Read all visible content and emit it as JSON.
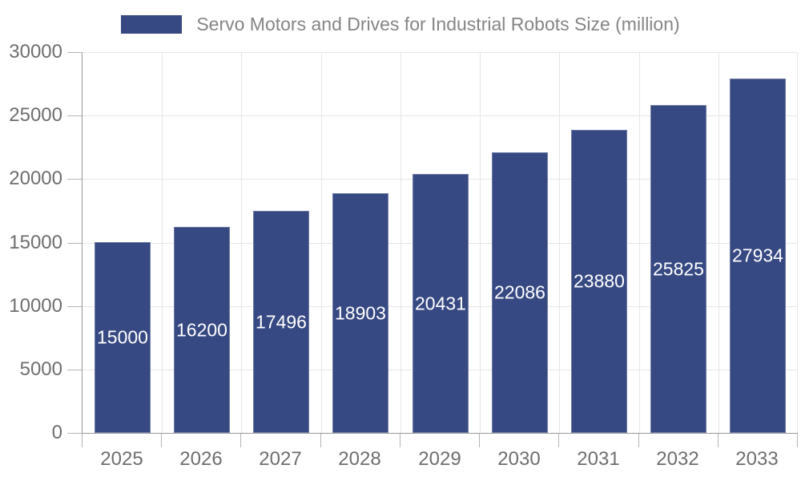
{
  "chart_data": {
    "type": "bar",
    "title": "Servo Motors and Drives for Industrial Robots Size (million)",
    "categories": [
      "2025",
      "2026",
      "2027",
      "2028",
      "2029",
      "2030",
      "2031",
      "2032",
      "2033"
    ],
    "values": [
      15000,
      16200,
      17496,
      18903,
      20431,
      22086,
      23880,
      25825,
      27934
    ],
    "xlabel": "",
    "ylabel": "",
    "ylim": [
      0,
      30000
    ],
    "yticks": [
      0,
      5000,
      10000,
      15000,
      20000,
      25000,
      30000
    ],
    "grid": true,
    "legend_position": "top",
    "value_labels": "inside-center",
    "colors": {
      "bar": "#374982",
      "value_label": "#ffffff",
      "grid": "#e6e6e6",
      "axis": "#999999",
      "tick": "#b5b5b5",
      "tick_label": "#6e6e6e",
      "legend_text": "#858585",
      "background": "#ffffff"
    }
  }
}
